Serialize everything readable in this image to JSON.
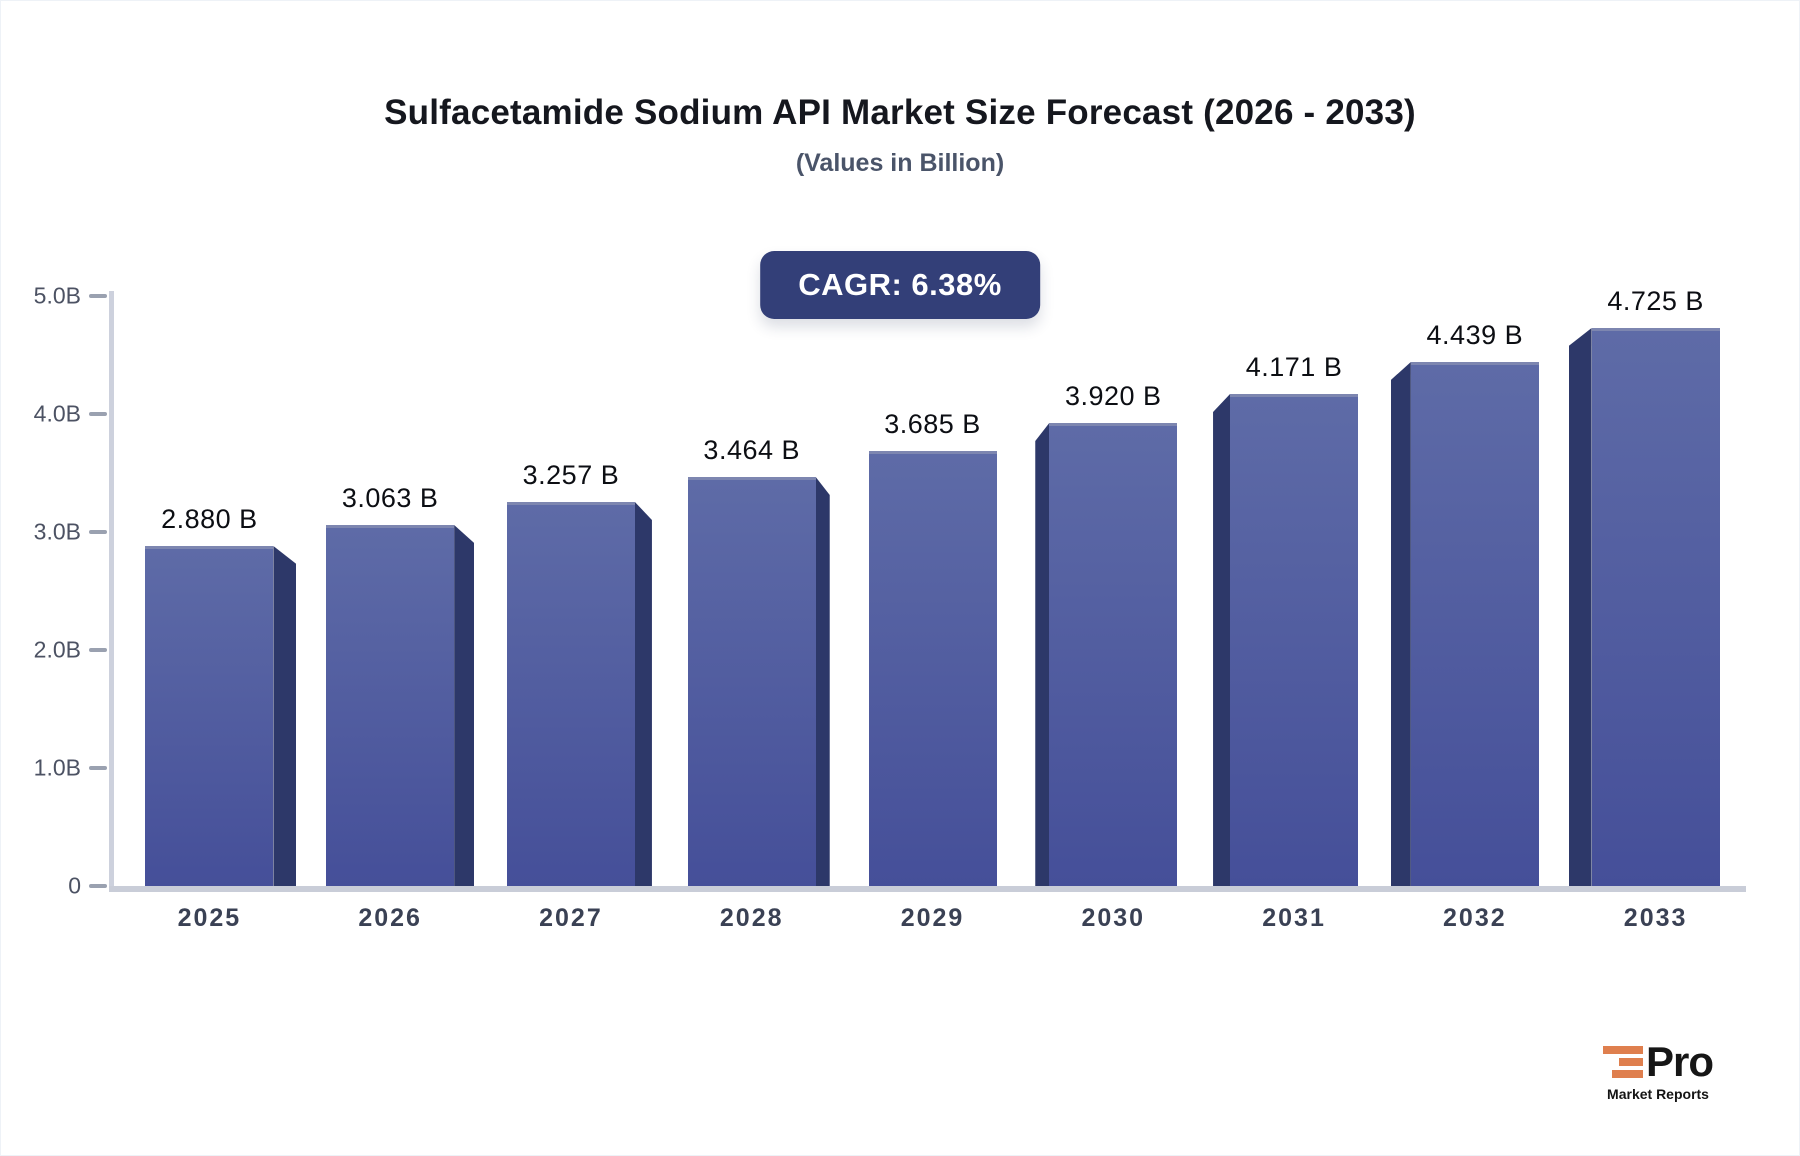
{
  "header": {
    "title": "Sulfacetamide Sodium API Market Size Forecast (2026 - 2033)",
    "subtitle": "(Values in Billion)"
  },
  "badge": {
    "label": "CAGR: 6.38%"
  },
  "chart_data": {
    "type": "bar",
    "title": "Sulfacetamide Sodium API Market Size Forecast (2026 - 2033)",
    "subtitle": "(Values in Billion)",
    "cagr_percent": 6.38,
    "categories": [
      "2025",
      "2026",
      "2027",
      "2028",
      "2029",
      "2030",
      "2031",
      "2032",
      "2033"
    ],
    "values": [
      2.88,
      3.063,
      3.257,
      3.464,
      3.685,
      3.92,
      4.171,
      4.439,
      4.725
    ],
    "value_labels": [
      "2.880 B",
      "3.063 B",
      "3.257 B",
      "3.464 B",
      "3.685 B",
      "3.920 B",
      "4.171 B",
      "4.439 B",
      "4.725 B"
    ],
    "xlabel": "",
    "ylabel": "",
    "ylim": [
      0,
      5
    ],
    "yticks": [
      {
        "label": "5.0B",
        "value": 5
      },
      {
        "label": "4.0B",
        "value": 4
      },
      {
        "label": "3.0B",
        "value": 3
      },
      {
        "label": "2.0B",
        "value": 2
      },
      {
        "label": "1.0B",
        "value": 1
      },
      {
        "label": "0",
        "value": 0
      }
    ],
    "grid": false,
    "legend": "none",
    "colors": {
      "bar_face_top": "#5e6ba7",
      "bar_face_bottom": "#454f99",
      "bar_face_edge": "#7d86b0",
      "bar_side": "#2d3869",
      "badge_bg": "#333f78",
      "axis": "#cdd1dd",
      "baseline": "#c9cdd8",
      "tick": "#9aa1b0"
    }
  },
  "logo": {
    "brand": "Pro",
    "tagline": "Market Reports",
    "accent": "#df7f4e"
  }
}
